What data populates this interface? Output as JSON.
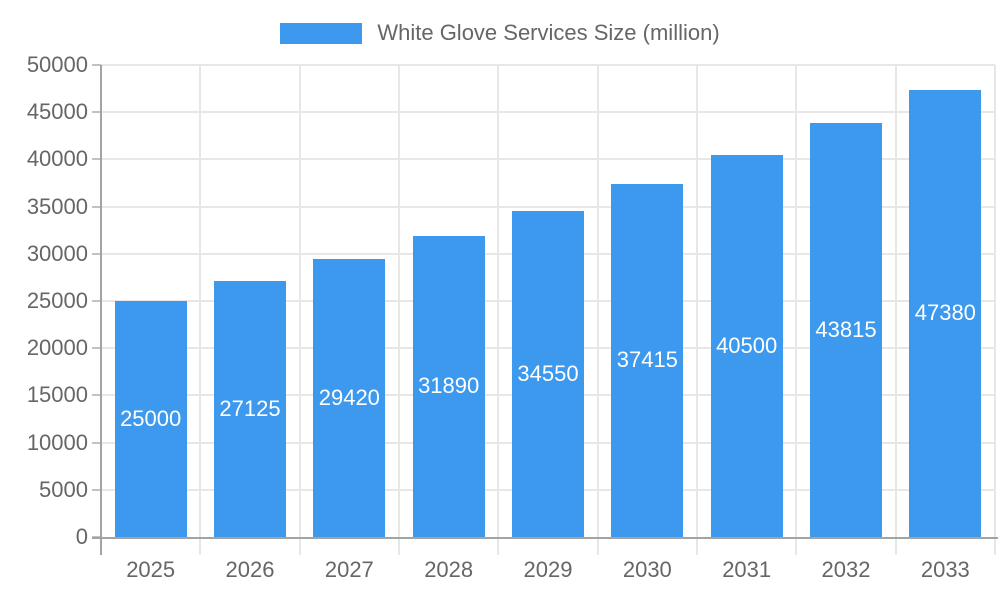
{
  "legend": {
    "label": "White Glove Services Size (million)"
  },
  "chart_data": {
    "type": "bar",
    "title": "White Glove Services Size (million)",
    "categories": [
      "2025",
      "2026",
      "2027",
      "2028",
      "2029",
      "2030",
      "2031",
      "2032",
      "2033"
    ],
    "series": [
      {
        "name": "White Glove Services Size (million)",
        "values": [
          25000,
          27125,
          29420,
          31890,
          34550,
          37415,
          40500,
          43815,
          47380
        ]
      }
    ],
    "xlabel": "",
    "ylabel": "",
    "ylim": [
      0,
      50000
    ],
    "ytick_step": 5000,
    "yticks": [
      0,
      5000,
      10000,
      15000,
      20000,
      25000,
      30000,
      35000,
      40000,
      45000,
      50000
    ],
    "grid": "horizontal-and-vertical",
    "legend_position": "top-center",
    "value_label_position": "inside-center"
  },
  "colors": {
    "bar": "#3C99EE",
    "axis_text": "#666666",
    "legend_text": "#666666",
    "grid_line": "#E7E7E7",
    "axis_line": "#A3A3A3",
    "tick_mark": "#C2C2C2",
    "value_label": "#FFFFFF",
    "background": "#FFFFFF"
  }
}
